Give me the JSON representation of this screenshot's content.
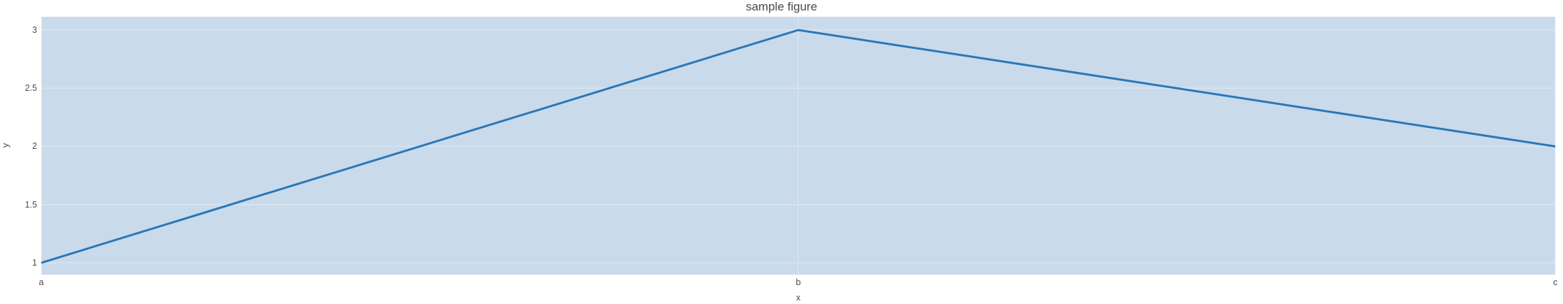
{
  "page": {
    "background_color": "#ffffff"
  },
  "chart_data": {
    "type": "line",
    "title": "sample figure",
    "xlabel": "x",
    "ylabel": "y",
    "categories": [
      "a",
      "b",
      "c"
    ],
    "series": [
      {
        "name": "y",
        "values": [
          1,
          3,
          2
        ]
      }
    ],
    "yticks": [
      1,
      1.5,
      2,
      2.5,
      3
    ],
    "ytick_labels": [
      "1",
      "1.5",
      "2",
      "2.5",
      "3"
    ],
    "ylim": [
      0.898,
      3.114
    ],
    "grid": true,
    "legend": "none",
    "colors": {
      "line": "#2878b8",
      "plot_background": "#c9daeb",
      "gridline": "#dbe6f1",
      "title_text": "#4a4a4a",
      "tick_text": "#4d4d4d"
    }
  }
}
